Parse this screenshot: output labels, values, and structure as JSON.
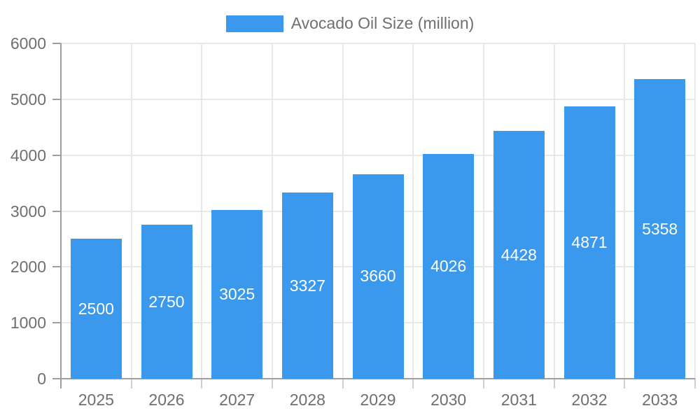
{
  "legend": {
    "label": "Avocado Oil Size (million)"
  },
  "colors": {
    "bar": "#3a99ec",
    "bar_label": "#ffffff",
    "axis_text": "#6f6f6f",
    "grid": "#e8e8e8",
    "axis_line": "#9e9e9e",
    "x_tick": "#cfcfcf",
    "background": "#ffffff"
  },
  "chart_data": {
    "type": "bar",
    "title": "Avocado Oil Size (million)",
    "series_name": "Avocado Oil Size (million)",
    "categories": [
      "2025",
      "2026",
      "2027",
      "2028",
      "2029",
      "2030",
      "2031",
      "2032",
      "2033"
    ],
    "values": [
      2500,
      2750,
      3025,
      3327,
      3660,
      4026,
      4428,
      4871,
      5358
    ],
    "xlabel": "",
    "ylabel": "",
    "ylim": [
      0,
      6000
    ],
    "yticks": [
      0,
      1000,
      2000,
      3000,
      4000,
      5000,
      6000
    ],
    "grid": "on",
    "legend_position": "top",
    "bar_labels_visible": true,
    "bar_label_position": "center"
  }
}
